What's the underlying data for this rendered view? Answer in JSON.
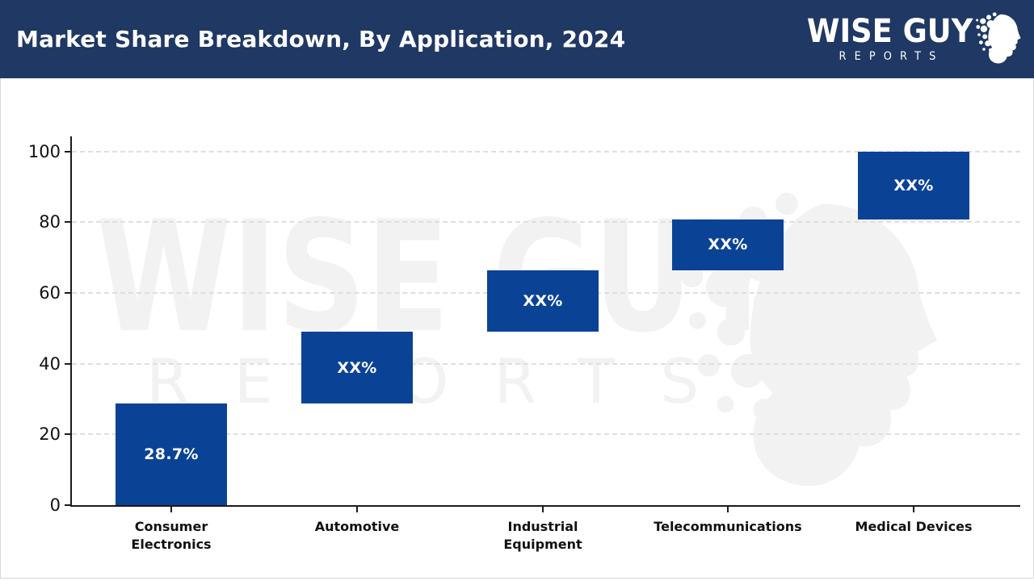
{
  "header": {
    "title": "Market Share Breakdown, By Application, 2024",
    "logo": {
      "line1": "WISE GUY",
      "line2": "REPORTS"
    }
  },
  "watermark": {
    "line1": "WISE GUY",
    "line2": "REPORTS"
  },
  "chart_data": {
    "type": "bar",
    "subtype": "waterfall",
    "title": "Market Share Breakdown, By Application, 2024",
    "categories": [
      "Consumer Electronics",
      "Automotive",
      "Industrial Equipment",
      "Telecommunications",
      "Medical Devices"
    ],
    "tick_lines": [
      [
        "Consumer",
        "Electronics"
      ],
      [
        "Automotive"
      ],
      [
        "Industrial",
        "Equipment"
      ],
      [
        "Telecommunications"
      ],
      [
        "Medical Devices"
      ]
    ],
    "segments": [
      {
        "category": "Consumer Electronics",
        "start": 0,
        "end": 28.7,
        "label": "28.7%"
      },
      {
        "category": "Automotive",
        "start": 28.7,
        "end": 49.0,
        "label": "XX%"
      },
      {
        "category": "Industrial Equipment",
        "start": 49.0,
        "end": 66.3,
        "label": "XX%"
      },
      {
        "category": "Telecommunications",
        "start": 66.3,
        "end": 80.8,
        "label": "XX%"
      },
      {
        "category": "Medical Devices",
        "start": 80.8,
        "end": 100,
        "label": "XX%"
      }
    ],
    "ylim": [
      0,
      100
    ],
    "yticks": [
      0,
      20,
      40,
      60,
      80,
      100
    ],
    "grid": "horizontal-dashed",
    "legend": "none",
    "bar_color": "#0a4296",
    "header_color": "#1f3864",
    "watermark_color": "#f2f2f2"
  }
}
